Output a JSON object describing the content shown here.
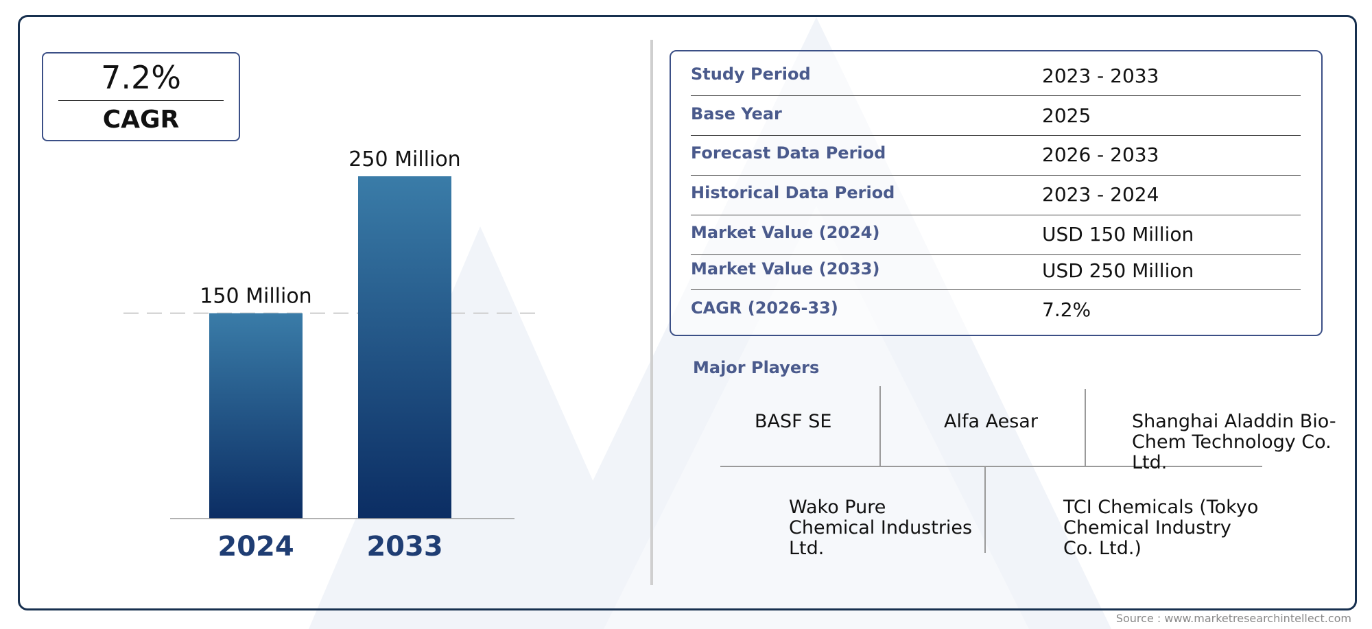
{
  "cagr_box": {
    "value": "7.2%",
    "label": "CAGR"
  },
  "chart_data": {
    "type": "bar",
    "categories": [
      "2024",
      "2033"
    ],
    "values": [
      150,
      250
    ],
    "value_labels": [
      "150 Million",
      "250 Million"
    ],
    "unit": "Million",
    "ylim": [
      0,
      250
    ],
    "colors": {
      "bar_top": "#3a7ca8",
      "bar_bottom": "#0b2d63",
      "category_text": "#1f3d73"
    },
    "reference_line": {
      "value": 150,
      "style": "dashed"
    },
    "grid": false,
    "legend": "none"
  },
  "info_table": {
    "rows": [
      {
        "label": "Study Period",
        "value": "2023 - 2033"
      },
      {
        "label": "Base Year",
        "value": "2025"
      },
      {
        "label": "Forecast Data Period",
        "value": "2026 - 2033"
      },
      {
        "label": "Historical Data Period",
        "value": "2023 - 2024"
      },
      {
        "label": "Market Value (2024)",
        "value": "USD 150 Million"
      },
      {
        "label": "Market Value (2033)",
        "value": "USD 250 Million"
      },
      {
        "label": "CAGR (2026-33)",
        "value": "7.2%"
      }
    ]
  },
  "major_players": {
    "title": "Major Players",
    "players": [
      "BASF SE",
      "Alfa Aesar",
      "Shanghai Aladdin Bio-Chem Technology Co. Ltd.",
      "Wako Pure Chemical Industries Ltd.",
      "TCI Chemicals (Tokyo Chemical Industry Co. Ltd.)"
    ]
  },
  "source": "Source : www.marketresearchintellect.com",
  "colors": {
    "frame": "#17304f",
    "label_text": "#4a5a8c",
    "box_border": "#3b4f86"
  }
}
